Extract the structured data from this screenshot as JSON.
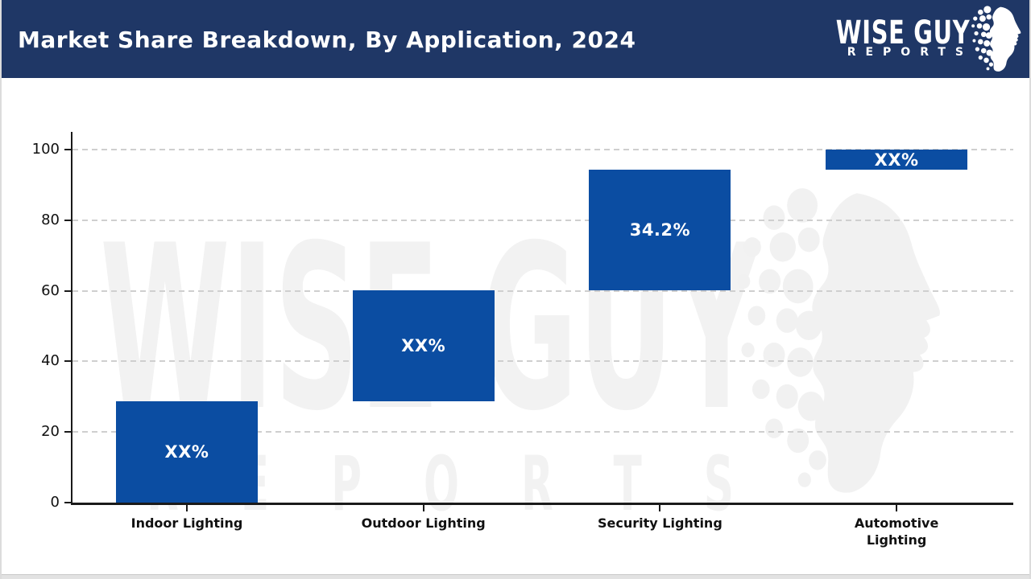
{
  "header": {
    "title": "Market Share Breakdown, By Application, 2024",
    "logo": {
      "line1": "WISE GUY",
      "line2": "REPORTS"
    }
  },
  "watermark": {
    "line1": "WISE GUY",
    "line2": "REPORTS"
  },
  "colors": {
    "header_bg": "#1f3766",
    "bar_blue": "#0b4da2",
    "grid_gray": "#cfcfcf",
    "axis_black": "#1a1a1a",
    "watermark_gray": "#f2f2f2",
    "bar_label_white": "#ffffff"
  },
  "chart_data": {
    "type": "bar",
    "subtype": "waterfall",
    "title": "Market Share Breakdown, By Application, 2024",
    "categories": [
      "Indoor Lighting",
      "Outdoor Lighting",
      "Security Lighting",
      "Automotive Lighting"
    ],
    "category_lines": [
      [
        "Indoor Lighting"
      ],
      [
        "Outdoor Lighting"
      ],
      [
        "Security Lighting"
      ],
      [
        "Automotive",
        "Lighting"
      ]
    ],
    "segments": [
      {
        "category": "Indoor Lighting",
        "start": 0,
        "end": 28.7,
        "label": "XX%"
      },
      {
        "category": "Outdoor Lighting",
        "start": 28.7,
        "end": 60.1,
        "label": "XX%"
      },
      {
        "category": "Security Lighting",
        "start": 60.1,
        "end": 94.3,
        "label": "34.2%"
      },
      {
        "category": "Automotive Lighting",
        "start": 94.3,
        "end": 100,
        "label": "XX%"
      }
    ],
    "yticks": [
      0,
      20,
      40,
      60,
      80,
      100
    ],
    "ylim": [
      0,
      105
    ],
    "xlabel": "",
    "ylabel": "",
    "grid": "dashed-horizontal",
    "legend": "none"
  }
}
